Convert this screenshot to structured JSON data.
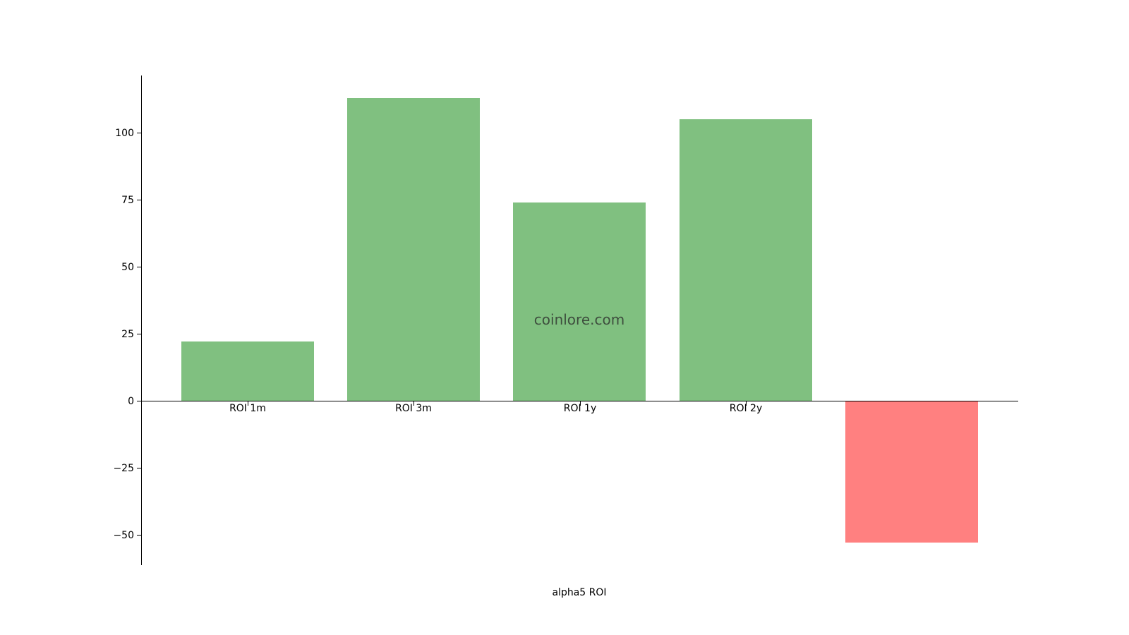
{
  "figure": {
    "background_color": "#ffffff"
  },
  "chart_data": {
    "type": "bar",
    "title": "",
    "xlabel": "alpha5 ROI",
    "ylabel": "",
    "categories": [
      "ROI 1m",
      "ROI 3m",
      "ROI 1y",
      "ROI 2y",
      ""
    ],
    "values": [
      22,
      113,
      74,
      105,
      -53
    ],
    "bar_colors": [
      "#80c080",
      "#80c080",
      "#80c080",
      "#80c080",
      "#ff8080"
    ],
    "positive_color": "#80c080",
    "negative_color": "#ff8080",
    "ytick_values": [
      100,
      75,
      50,
      25,
      0,
      -25,
      -50
    ],
    "ytick_labels": [
      "100",
      "75",
      "50",
      "25",
      "0",
      "−25",
      "−50"
    ],
    "ylim": [
      -61.3,
      121.3
    ],
    "grid": false,
    "legend": null,
    "axis_color": "#000000",
    "tick_label_color": "#000000",
    "watermark": "coinlore.com",
    "watermark_color": "rgba(40,40,40,0.75)"
  }
}
